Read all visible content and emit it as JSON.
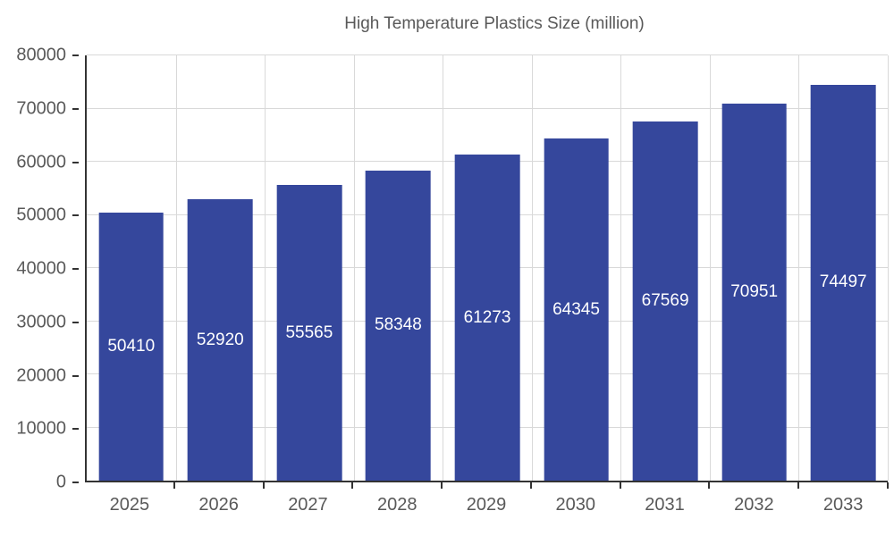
{
  "legend": {
    "swatch_color": "#35479c",
    "label": "High Temperature Plastics Size (million)"
  },
  "colors": {
    "bar": "#35479c",
    "axis": "#333333",
    "gridline": "#d9d9d9",
    "tick_text": "#595959",
    "bar_label_text": "#ffffff"
  },
  "chart_data": {
    "type": "bar",
    "title": "High Temperature Plastics Size (million)",
    "categories": [
      "2025",
      "2026",
      "2027",
      "2028",
      "2029",
      "2030",
      "2031",
      "2032",
      "2033"
    ],
    "values": [
      50410,
      52920,
      55565,
      58348,
      61273,
      64345,
      67569,
      70951,
      74497
    ],
    "xlabel": "",
    "ylabel": "",
    "ylim": [
      0,
      80000
    ],
    "ytick_step": 10000,
    "grid": true,
    "legend_position": "top",
    "value_labels": "inside-center"
  }
}
